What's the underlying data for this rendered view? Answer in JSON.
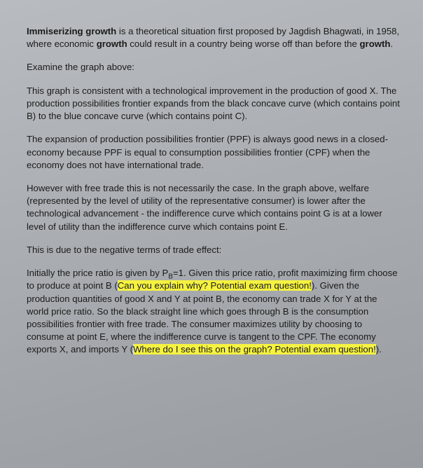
{
  "p1": {
    "b1": "Immiserizing growth",
    "t1": " is a theoretical situation first proposed by Jagdish Bhagwati, in 1958, where economic ",
    "b2": "growth",
    "t2": " could result in a country being worse off than before the ",
    "b3": "growth",
    "t3": "."
  },
  "p2": "Examine the graph above:",
  "p3": "This graph is consistent with a technological improvement in the production of good X. The production possibilities frontier expands from the black concave curve (which contains point B) to the blue concave curve (which contains point C).",
  "p4": "The expansion of production possibilities frontier (PPF) is always good news in a closed-economy because PPF is equal to consumption possibilities frontier (CPF) when the economy does not have international trade.",
  "p5": "However with free trade this is not necessarily the case. In the graph above, welfare (represented by the level of utility of the representative consumer) is lower after the technological advancement - the indifference curve which contains point G is at a lower level of utility than the indifference curve which contains point E.",
  "p6": "This is due to the negative terms of trade effect:",
  "p7": {
    "t1": "Initially the price ratio is given by P",
    "sub": "B",
    "t2": "=1. Given this price ratio, profit maximizing firm choose to produce at point B (",
    "h1": "Can you explain why? Potential exam question!",
    "t3": "). Given the production quantities of good X and Y at point B, the economy can trade X for Y at the world price ratio. So the black straight line which goes through B is the consumption possibilities frontier with free trade. The consumer maximizes utility by choosing to consume at point E, where the indifference curve is tangent to the CPF. The economy exports X, and imports Y (",
    "h2": "Where do I see this on the graph? Potential exam question!",
    "t4": ")."
  }
}
